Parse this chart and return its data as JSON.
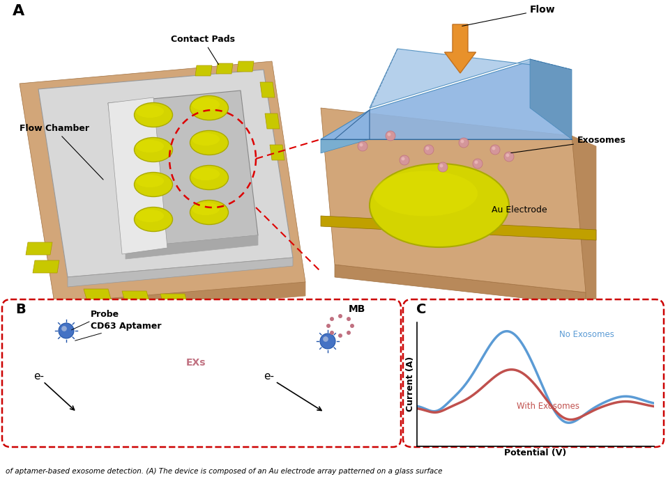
{
  "panel_A_label": "A",
  "panel_B_label": "B",
  "panel_C_label": "C",
  "flow_label": "Flow",
  "contact_pads_label": "Contact Pads",
  "flow_chamber_label": "Flow Chamber",
  "exosomes_label": "Exosomes",
  "au_electrode_label": "Au Electrode",
  "probe_label": "Probe",
  "cd63_label": "CD63 Aptamer",
  "mb_label": "MB",
  "exs_label": "EXs",
  "e_minus_label": "e-",
  "current_label": "Current (A)",
  "potential_label": "Potential (V)",
  "no_exosomes_label": "No Exosomes",
  "with_exosomes_label": "With Exosomes",
  "caption": "of aptamer-based exosome detection. (A) The device is composed of an Au electrode array patterned on a glass surface",
  "blue_line_color": "#5B9BD5",
  "red_line_color": "#C0504D",
  "border_color": "#CC0000",
  "background_white": "#FFFFFF",
  "gold_color": "#C8C800",
  "tan_color": "#D2A679",
  "tan_dark": "#B8895A",
  "tan_side": "#C4956A",
  "gray_top": "#D8D8D8",
  "gray_inner": "#C0C0C0",
  "blue_flow_color": "#8DB4E2",
  "arrow_orange": "#E8912B",
  "arrow_orange_dark": "#C07020",
  "green_arrow": "#C6EFCE",
  "exosome_pink": "#D4969A",
  "exosome_pink_dark": "#C07080",
  "electrode_yellow": "#D4D400",
  "electrode_shadow": "#AAAA00"
}
